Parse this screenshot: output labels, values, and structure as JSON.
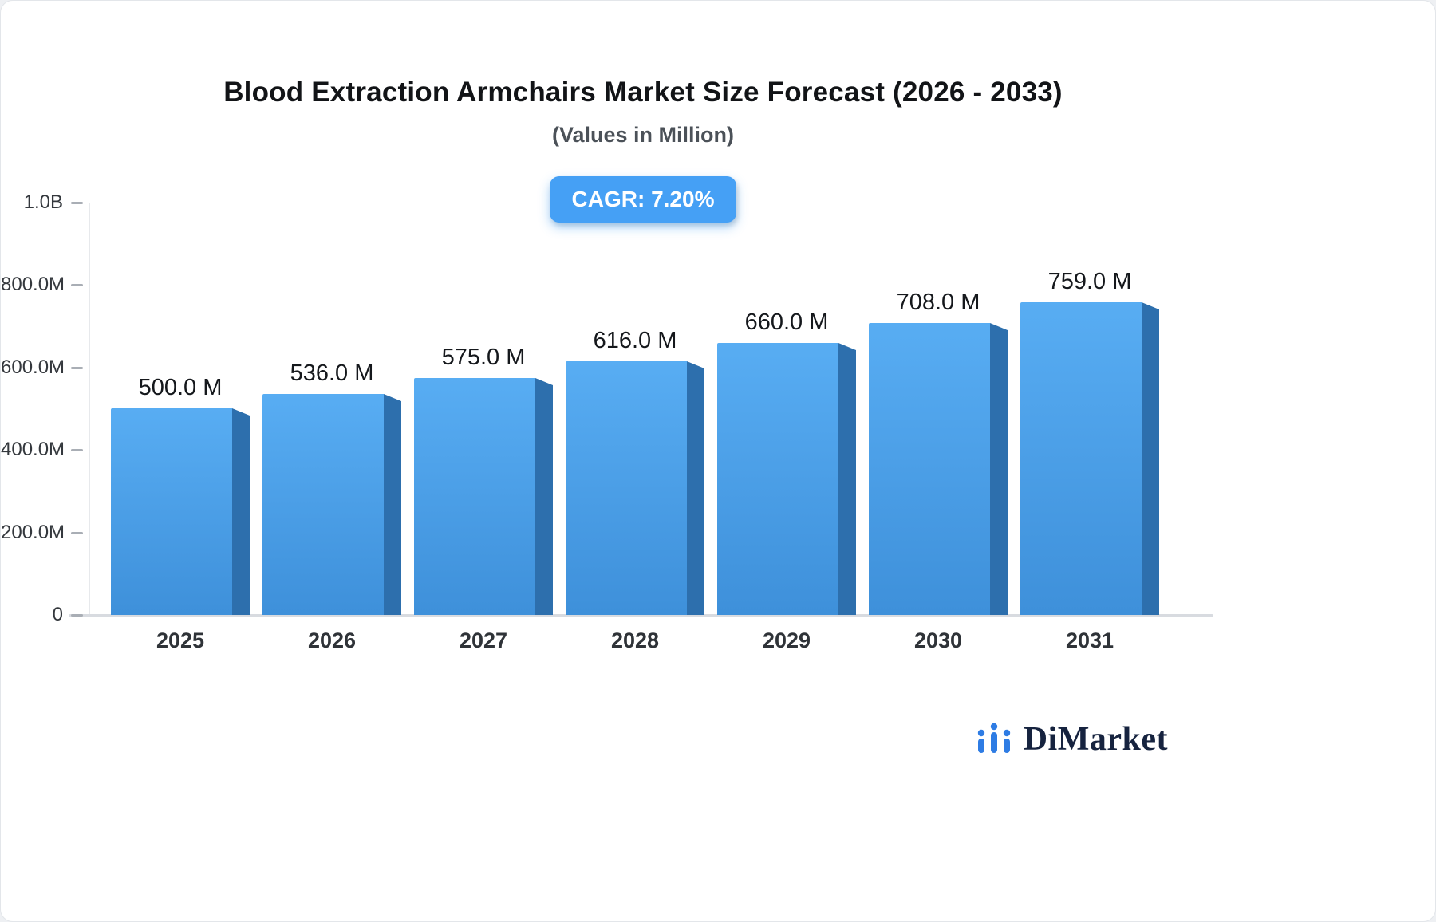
{
  "header": {
    "title": "Blood Extraction Armchairs Market Size Forecast (2026 - 2033)",
    "subtitle": "(Values in Million)",
    "cagr_badge": "CAGR: 7.20%"
  },
  "chart_data": {
    "type": "bar",
    "title": "Blood Extraction Armchairs Market Size Forecast (2026 - 2033)",
    "subtitle": "(Values in Million)",
    "unit": "Million",
    "categories": [
      "2025",
      "2026",
      "2027",
      "2028",
      "2029",
      "2030",
      "2031"
    ],
    "values": [
      500,
      536,
      575,
      616,
      660,
      708,
      759
    ],
    "value_labels": [
      "500.0 M",
      "536.0 M",
      "575.0 M",
      "616.0 M",
      "660.0 M",
      "708.0 M",
      "759.0 M"
    ],
    "ylim": [
      0,
      1000
    ],
    "yticks": [
      {
        "value": 0,
        "label": "0"
      },
      {
        "value": 200,
        "label": "200.0M"
      },
      {
        "value": 400,
        "label": "400.0M"
      },
      {
        "value": 600,
        "label": "600.0M"
      },
      {
        "value": 800,
        "label": "800.0M"
      },
      {
        "value": 1000,
        "label": "1.0B"
      }
    ],
    "grid": "off",
    "legend": "none",
    "colors": {
      "bar_front_top": "#58adf3",
      "bar_front_bottom": "#3e90da",
      "bar_side": "#2d6fad",
      "accent": "#45a0f5",
      "baseline": "#d8dbe0",
      "text": "#15181c"
    }
  },
  "logo": {
    "text": "DiMarket",
    "icon": "bar-chart-dots-icon",
    "icon_color": "#2e7ce4",
    "text_color": "#16233f"
  }
}
